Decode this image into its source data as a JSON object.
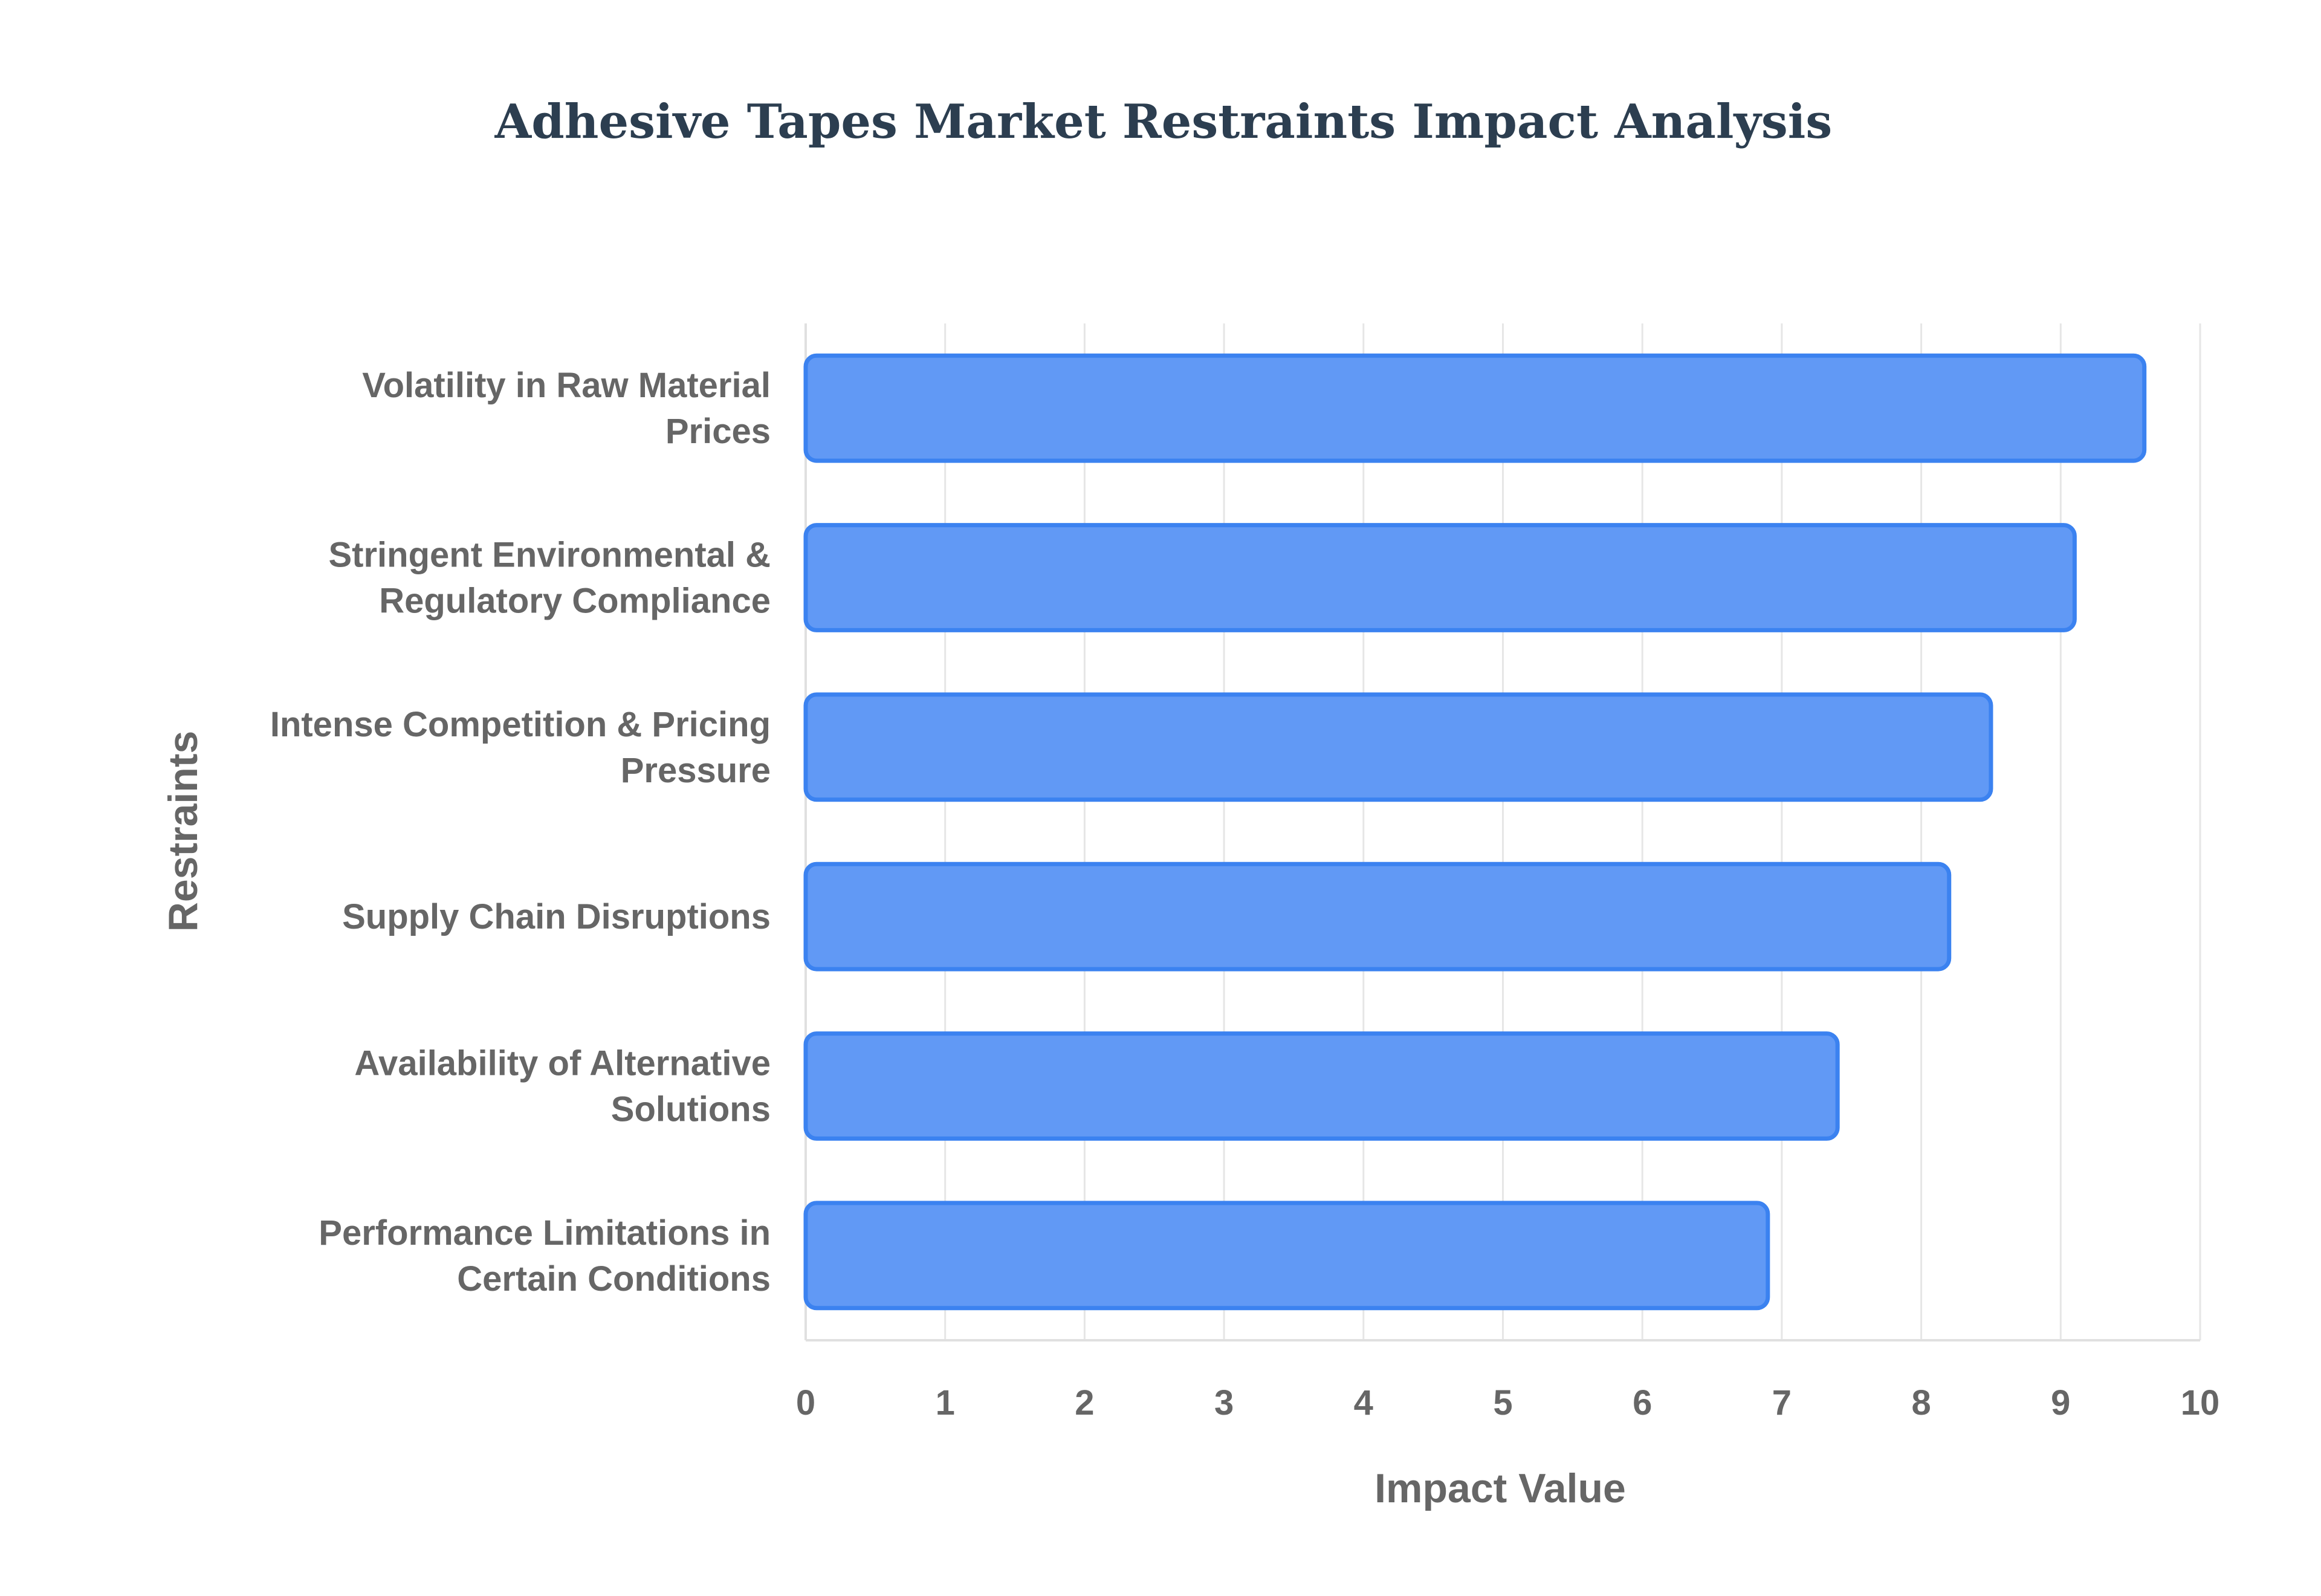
{
  "chart_data": {
    "type": "bar",
    "orientation": "horizontal",
    "title": "Adhesive Tapes Market Restraints Impact Analysis",
    "xlabel": "Impact Value",
    "ylabel": "Restraints",
    "xlim": [
      0,
      10
    ],
    "x_ticks": [
      "0",
      "1",
      "2",
      "3",
      "4",
      "5",
      "6",
      "7",
      "8",
      "9",
      "10"
    ],
    "grid": true,
    "categories": [
      [
        "Volatility in Raw Material",
        "Prices"
      ],
      [
        "Stringent Environmental &",
        "Regulatory Compliance"
      ],
      [
        "Intense Competition & Pricing",
        "Pressure"
      ],
      [
        "Supply Chain Disruptions"
      ],
      [
        "Availability of Alternative",
        "Solutions"
      ],
      [
        "Performance Limitations in",
        "Certain Conditions"
      ]
    ],
    "values": [
      9.6,
      9.1,
      8.5,
      8.2,
      7.4,
      6.9
    ],
    "bar_color": "#6199f5",
    "bar_border_color": "#3b82f0"
  }
}
